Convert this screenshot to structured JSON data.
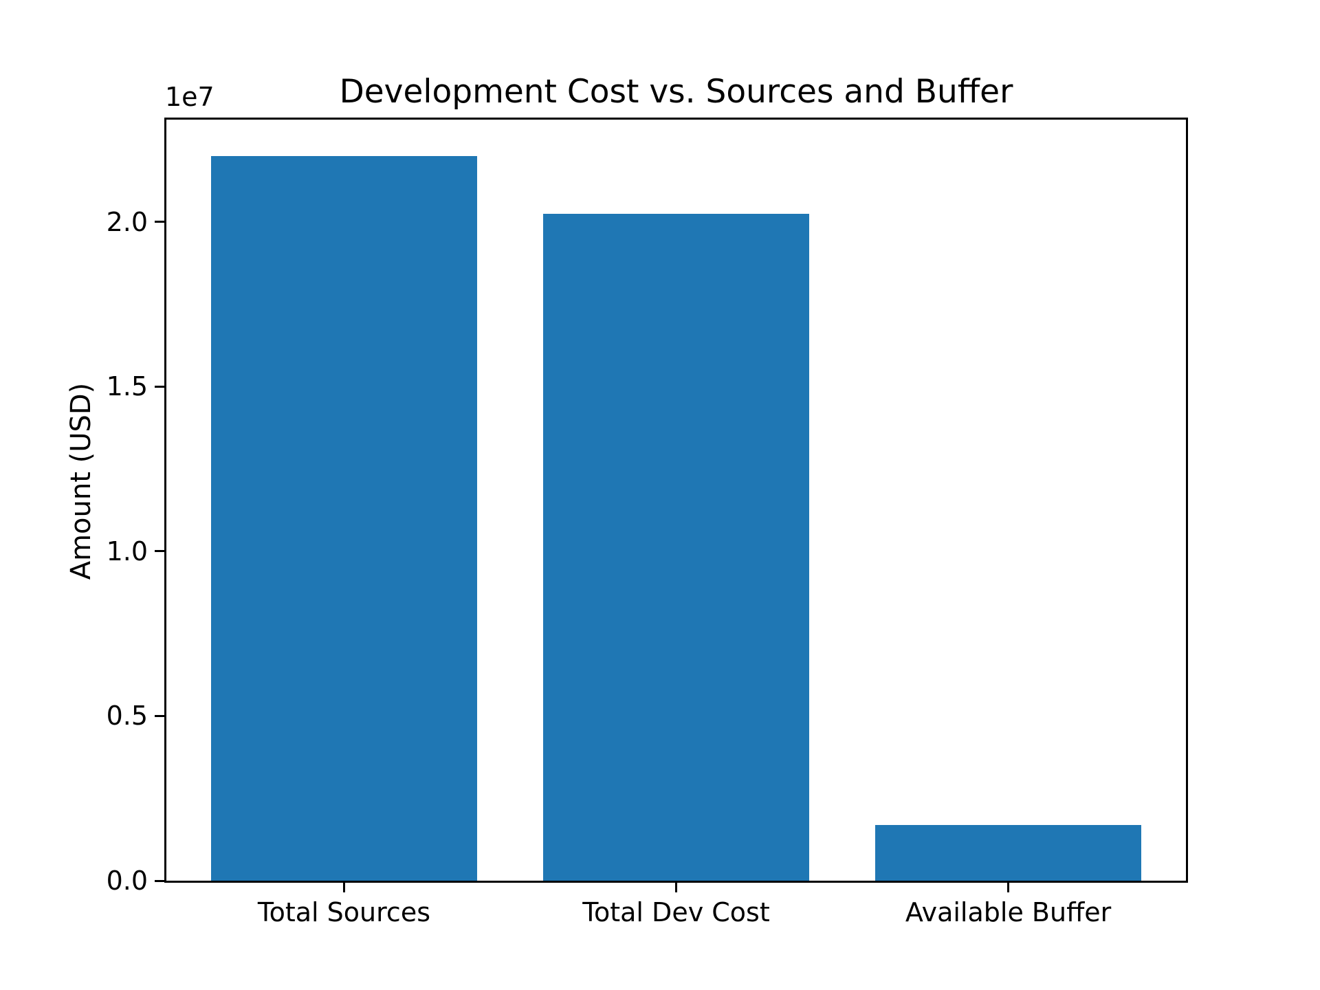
{
  "chart_data": {
    "type": "bar",
    "title": "Development Cost vs. Sources and Buffer",
    "ylabel": "Amount (USD)",
    "xlabel": "",
    "y_offset_label": "1e7",
    "categories": [
      "Total Sources",
      "Total Dev Cost",
      "Available Buffer"
    ],
    "values": [
      22000000,
      20250000,
      1700000
    ],
    "ylim": [
      0,
      23100000
    ],
    "yticks": [
      0,
      5000000,
      10000000,
      15000000,
      20000000
    ],
    "ytick_labels": [
      "0.0",
      "0.5",
      "1.0",
      "1.5",
      "2.0"
    ],
    "bar_color": "#1f77b4",
    "bar_width_fraction": 0.8,
    "grid": false,
    "legend_visible": false
  }
}
